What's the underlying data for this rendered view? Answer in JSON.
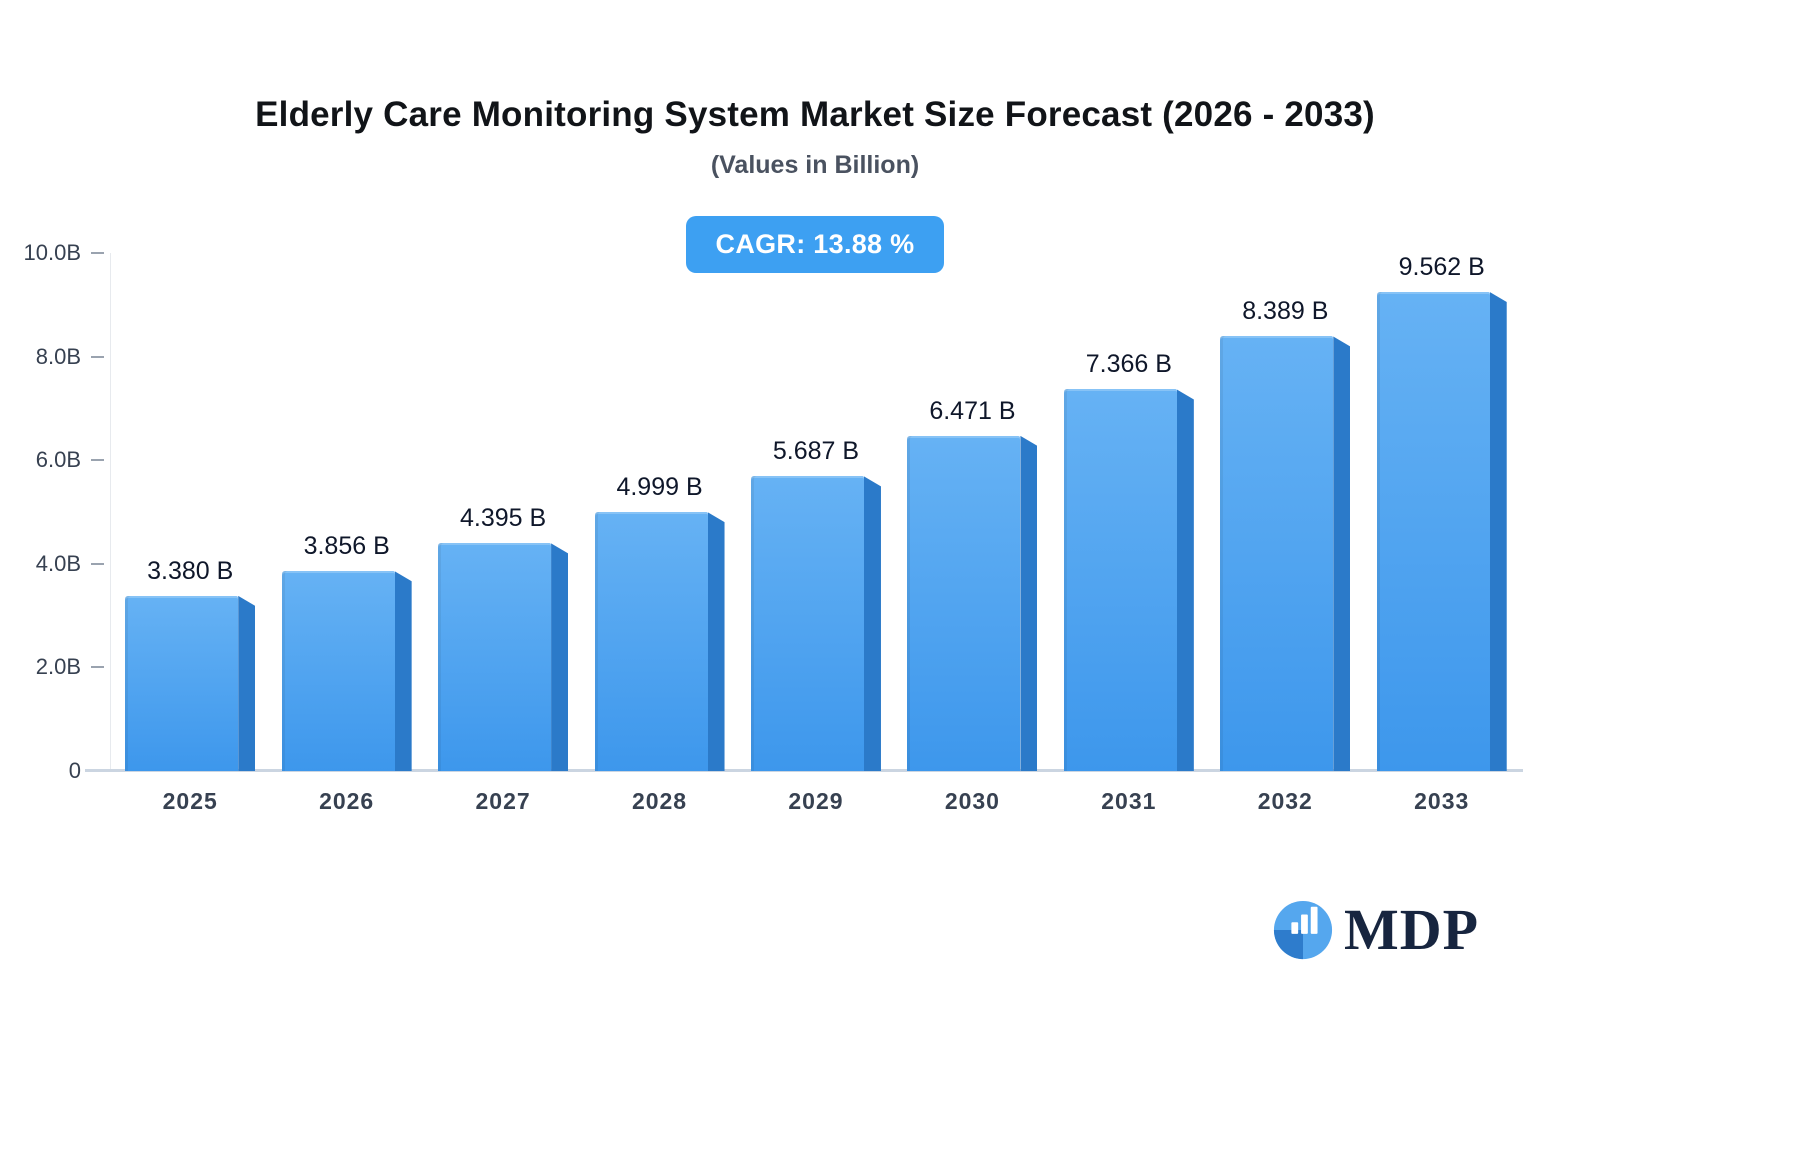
{
  "chart_data": {
    "type": "bar",
    "title": "Elderly Care Monitoring System Market Size Forecast (2026 - 2033)",
    "subtitle": "(Values in Billion)",
    "cagr_badge": "CAGR: 13.88 %",
    "categories": [
      "2025",
      "2026",
      "2027",
      "2028",
      "2029",
      "2030",
      "2031",
      "2032",
      "2033"
    ],
    "values": [
      3.38,
      3.856,
      4.395,
      4.999,
      5.687,
      6.471,
      7.366,
      8.389,
      9.562
    ],
    "labels": [
      "3.380 B",
      "3.856 B",
      "4.395 B",
      "4.999 B",
      "5.687 B",
      "6.471 B",
      "7.366 B",
      "8.389 B",
      "9.562 B"
    ],
    "y_ticks": [
      "10.0B",
      "8.0B",
      "6.0B",
      "4.0B",
      "2.0B",
      "0"
    ],
    "ylim": [
      0,
      10
    ],
    "xlabel": "",
    "ylabel": "",
    "grid": false,
    "legend": false,
    "bar_color": "#3d97ec",
    "bar_color_light": "#66b2f4",
    "bar_side_color": "#2b7ac9",
    "badge_color": "#3da0f2"
  },
  "logo": {
    "text": "MDP"
  }
}
